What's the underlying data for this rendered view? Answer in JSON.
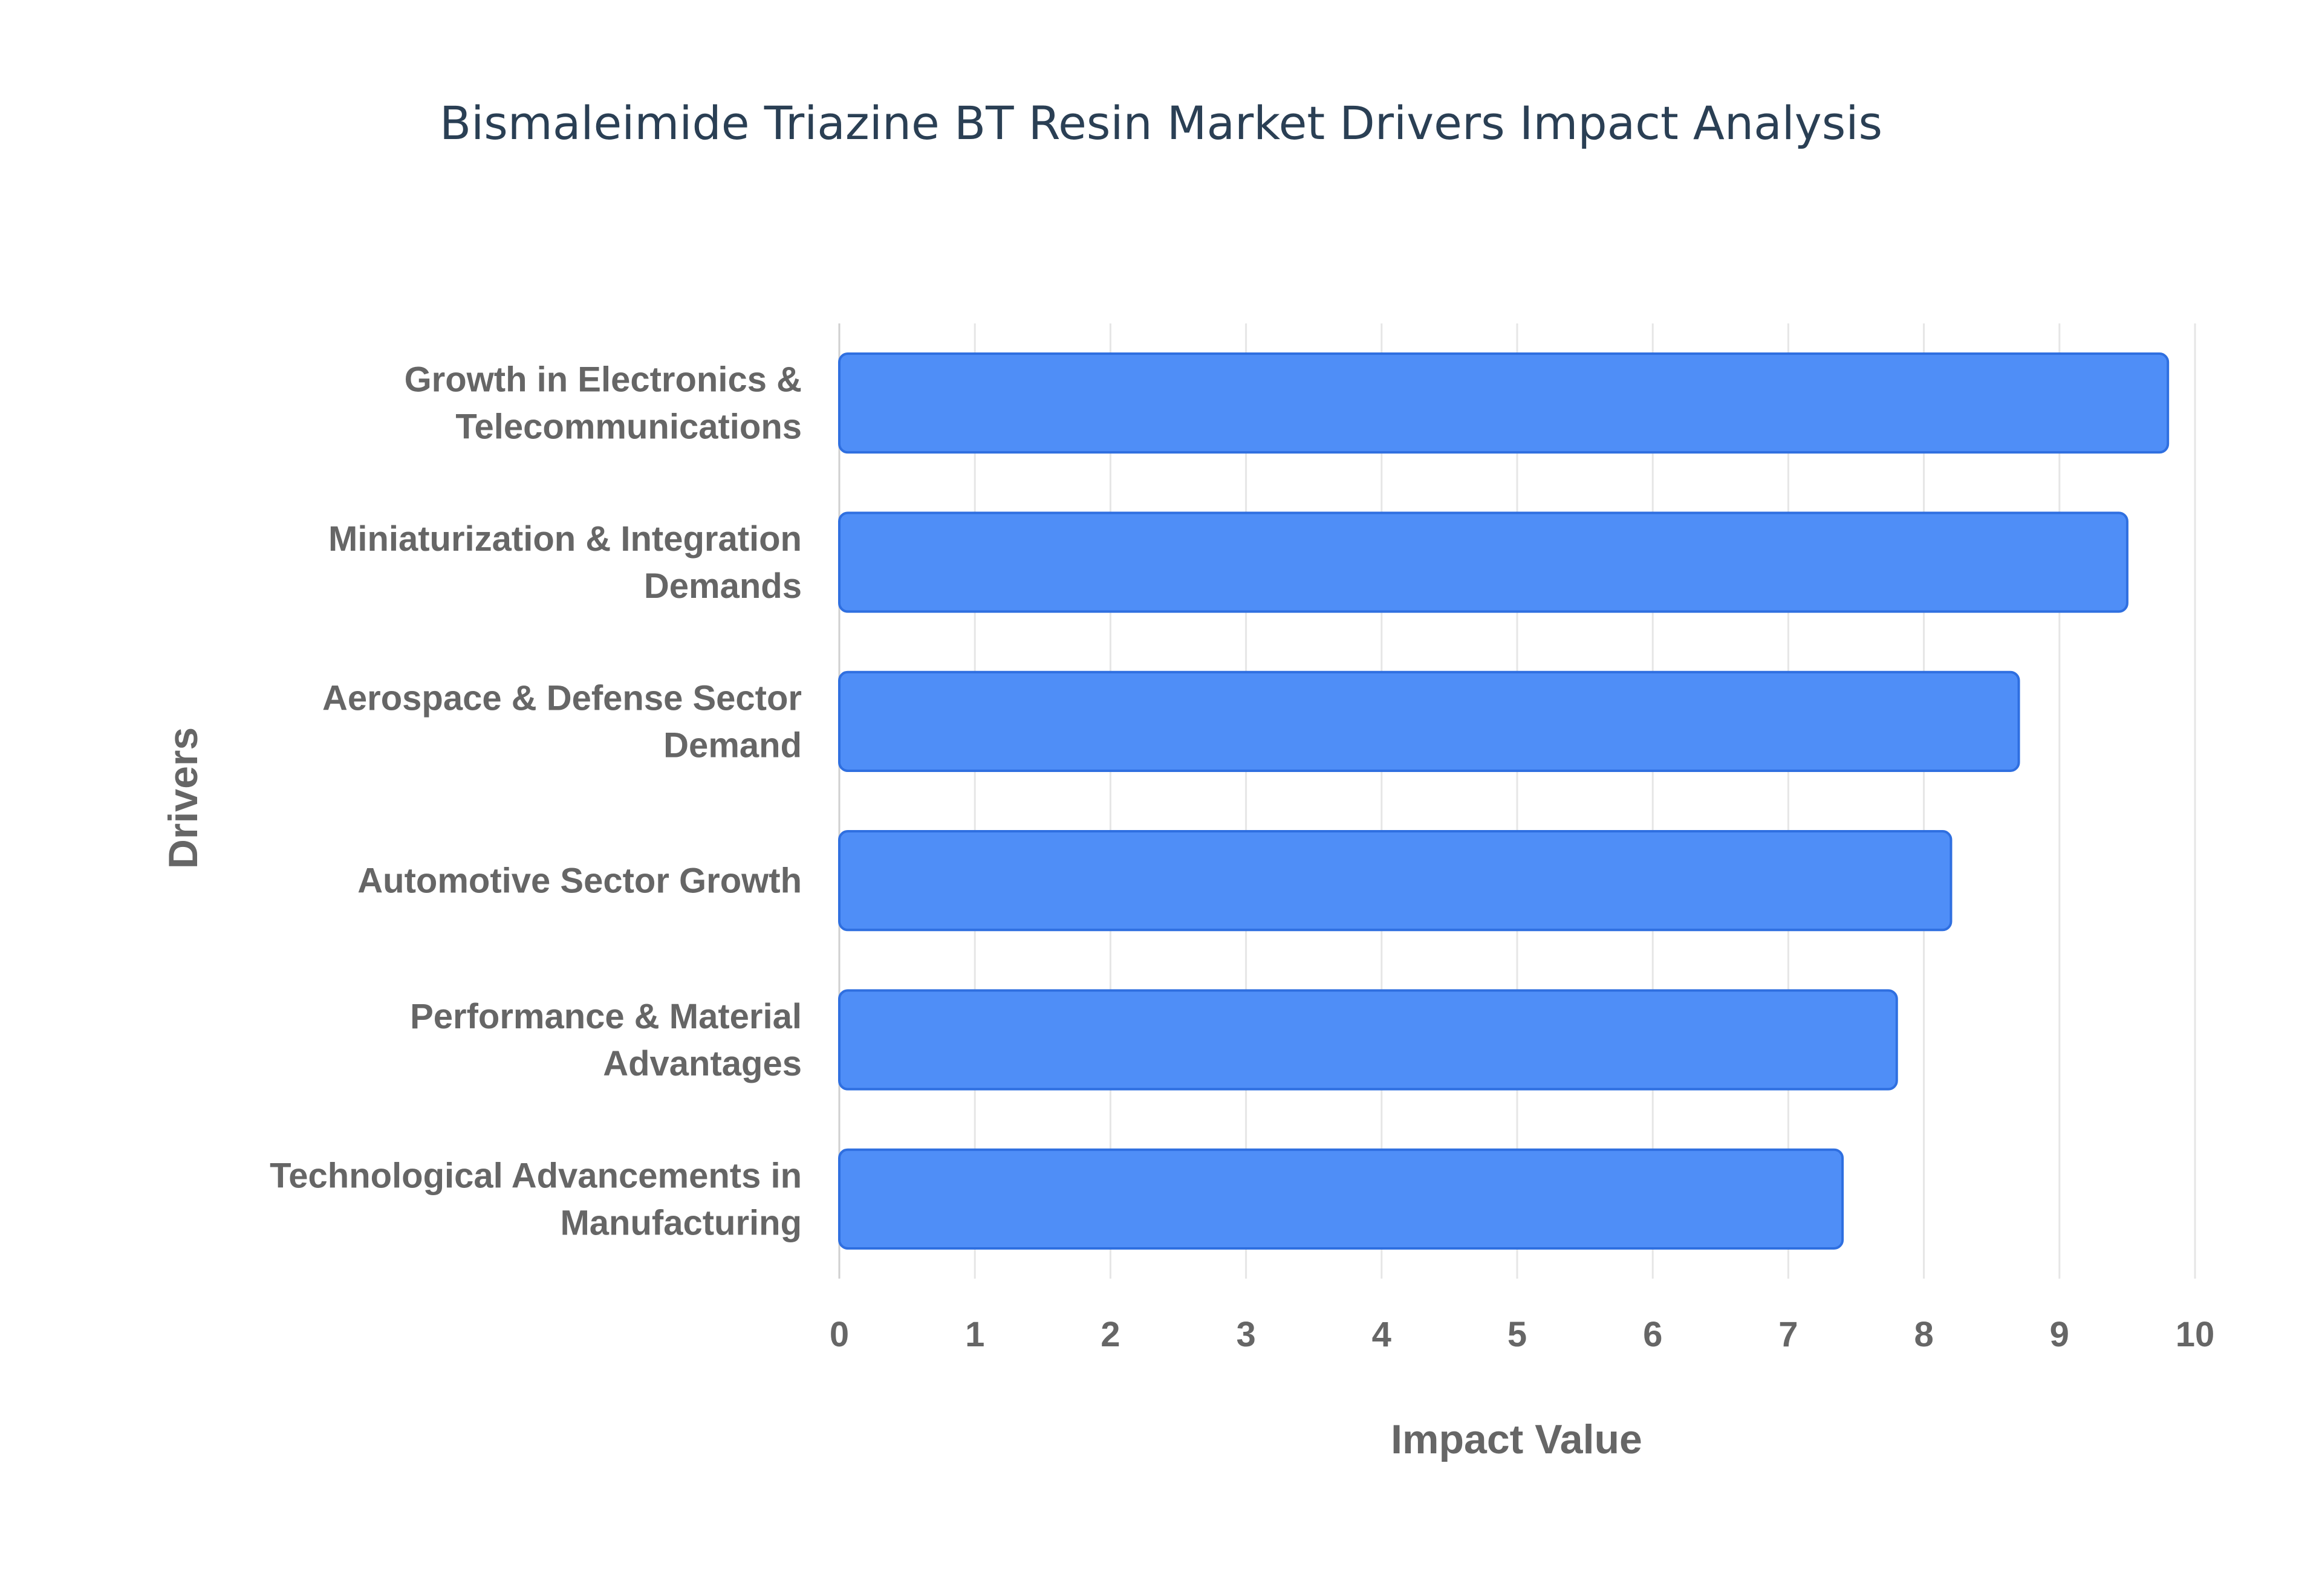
{
  "chart_data": {
    "type": "bar",
    "orientation": "horizontal",
    "title": "Bismaleimide Triazine BT Resin Market Drivers Impact Analysis",
    "xlabel": "Impact Value",
    "ylabel": "Drivers",
    "xlim": [
      0,
      10
    ],
    "xticks": [
      "0",
      "1",
      "2",
      "3",
      "4",
      "5",
      "6",
      "7",
      "8",
      "9",
      "10"
    ],
    "grid": true,
    "categories": [
      [
        "Growth in Electronics &",
        "Telecommunications"
      ],
      [
        "Miniaturization & Integration",
        "Demands"
      ],
      [
        "Aerospace & Defense Sector",
        "Demand"
      ],
      [
        "Automotive Sector Growth"
      ],
      [
        "Performance & Material",
        "Advantages"
      ],
      [
        "Technological Advancements in",
        "Manufacturing"
      ]
    ],
    "values": [
      9.8,
      9.5,
      8.7,
      8.2,
      7.8,
      7.4
    ],
    "colors": {
      "bar_fill": "#4f8ef7",
      "bar_stroke": "#2f6fe0",
      "grid": "#e6e6e6",
      "text": "#666666",
      "title": "#2a3f54"
    }
  }
}
